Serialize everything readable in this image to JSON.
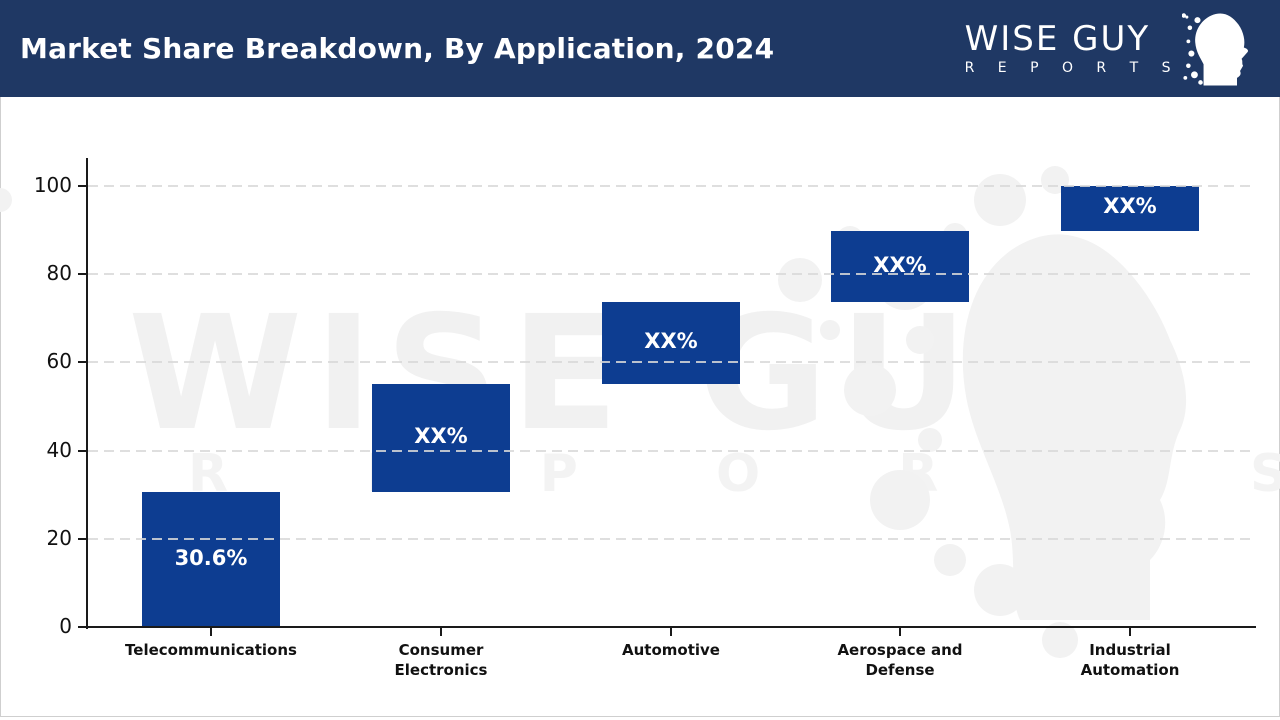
{
  "header": {
    "title": "Market Share Breakdown, By Application, 2024",
    "bg_color": "#1f3864",
    "logo": {
      "line1": "WISE GUY",
      "line2": "R E P O R T S"
    }
  },
  "watermark": {
    "line1": "WISE GUY",
    "line2": "R E P O R T S"
  },
  "chart_data": {
    "type": "bar",
    "subtype": "waterfall-stacked-breakdown",
    "title": "Market Share Breakdown, By Application, 2024",
    "categories": [
      "Telecommunications",
      "Consumer Electronics",
      "Automotive",
      "Aerospace and Defense",
      "Industrial Automation"
    ],
    "tick_labels": [
      "Telecommunications",
      "Consumer\nElectronics",
      "Automotive",
      "Aerospace and\nDefense",
      "Industrial\nAutomation"
    ],
    "segments": [
      {
        "category": "Telecommunications",
        "start": 0,
        "end": 30.6,
        "value": 30.6,
        "label": "30.6%"
      },
      {
        "category": "Consumer Electronics",
        "start": 30.6,
        "end": 55.2,
        "value": 24.6,
        "label": "XX%"
      },
      {
        "category": "Automotive",
        "start": 55.2,
        "end": 73.6,
        "value": 18.4,
        "label": "XX%"
      },
      {
        "category": "Aerospace and Defense",
        "start": 73.6,
        "end": 89.8,
        "value": 16.2,
        "label": "XX%"
      },
      {
        "category": "Industrial Automation",
        "start": 89.8,
        "end": 100,
        "value": 10.2,
        "label": "XX%"
      }
    ],
    "y_ticks": [
      0,
      20,
      40,
      60,
      80,
      100
    ],
    "ylim": [
      0,
      106
    ],
    "xlabel": "",
    "ylabel": "",
    "grid": "dashed-horizontal",
    "legend": "none",
    "bar_color": "#0d3d91",
    "label_color": "#ffffff",
    "axis_color": "#1a1a1a",
    "grid_color": "#d9d9d9"
  }
}
